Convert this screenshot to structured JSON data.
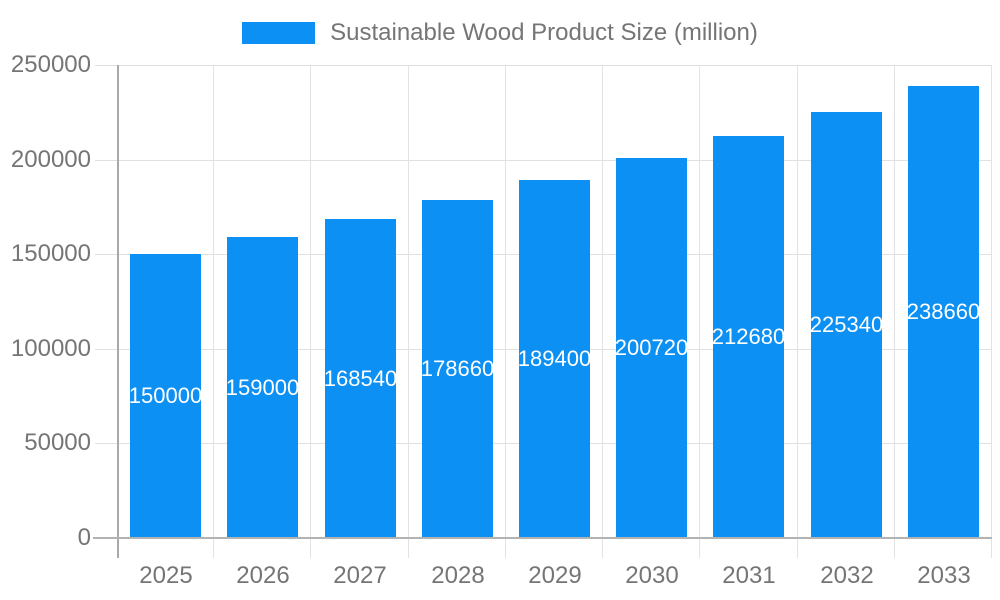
{
  "chart_data": {
    "type": "bar",
    "title": "Sustainable Wood Product Size (million)",
    "categories": [
      "2025",
      "2026",
      "2027",
      "2028",
      "2029",
      "2030",
      "2031",
      "2032",
      "2033"
    ],
    "series": [
      {
        "name": "Sustainable Wood Product Size (million)",
        "values": [
          150000,
          159000,
          168540,
          178660,
          189400,
          200720,
          212680,
          225340,
          238660
        ]
      }
    ],
    "bar_labels": [
      "150000",
      "159000",
      "168540",
      "178660",
      "189400",
      "200720",
      "212680",
      "225340",
      "238660"
    ],
    "ytick_labels": [
      "0",
      "50000",
      "100000",
      "150000",
      "200000",
      "250000"
    ],
    "yticks": [
      0,
      50000,
      100000,
      150000,
      200000,
      250000
    ],
    "ylim": [
      0,
      250000
    ],
    "xlabel": "",
    "ylabel": "",
    "grid": true,
    "legend_position": "top"
  },
  "style": {
    "bar_color": "#0d90f3",
    "bar_label_color": "#ffffff",
    "y_axis_line_color": "#a9a9a9",
    "x_axis_line_color": "#b3b3b3",
    "grid_line_color": "#e0e0e0",
    "separator_color": "#e3e3e3",
    "tick_label_color": "#757575",
    "background_color": "#ffffff"
  }
}
